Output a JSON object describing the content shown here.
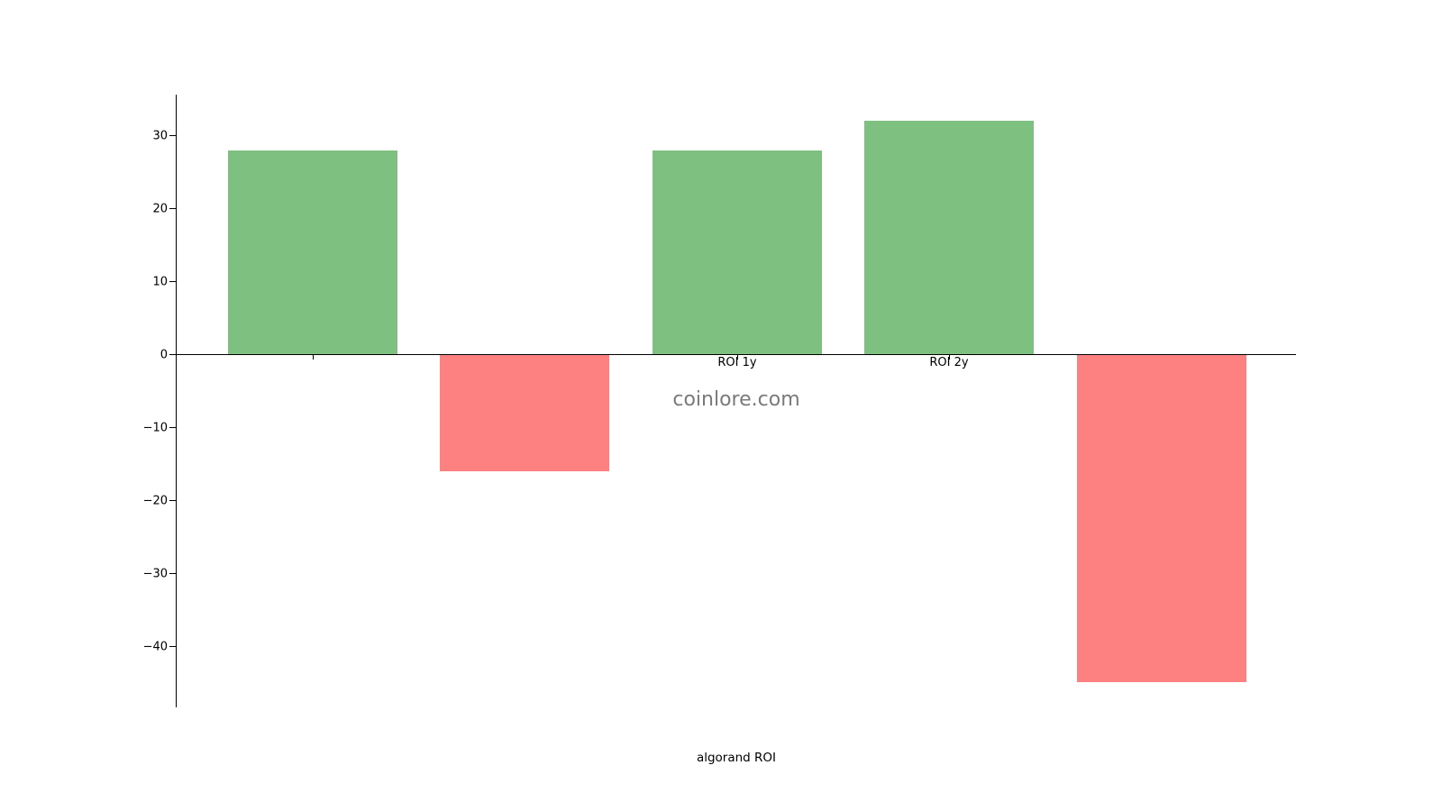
{
  "watermark": {
    "text": "coinlore.com",
    "color": "#7a7a7a"
  },
  "chart_data": {
    "type": "bar",
    "title": "",
    "xlabel": "algorand ROI",
    "ylabel": "",
    "categories": [
      "",
      "",
      "ROI 1y",
      "ROI 2y",
      ""
    ],
    "values": [
      28,
      -16,
      28,
      32,
      -45
    ],
    "bar_colors": [
      "#7dc07f",
      "#fd8181",
      "#7dc07f",
      "#7dc07f",
      "#fd8181"
    ],
    "positive_color": "#7dc07f",
    "negative_color": "#fd8181",
    "ylim": [
      -48.4,
      35.6
    ],
    "yticks": [
      30,
      20,
      10,
      0,
      -10,
      -20,
      -30,
      -40
    ],
    "ytick_labels": [
      "30",
      "20",
      "10",
      "0",
      "−10",
      "−20",
      "−30",
      "−40"
    ],
    "grid": false,
    "legend": "none",
    "axis_color": "#000000",
    "tick_label_color": "#000000"
  }
}
